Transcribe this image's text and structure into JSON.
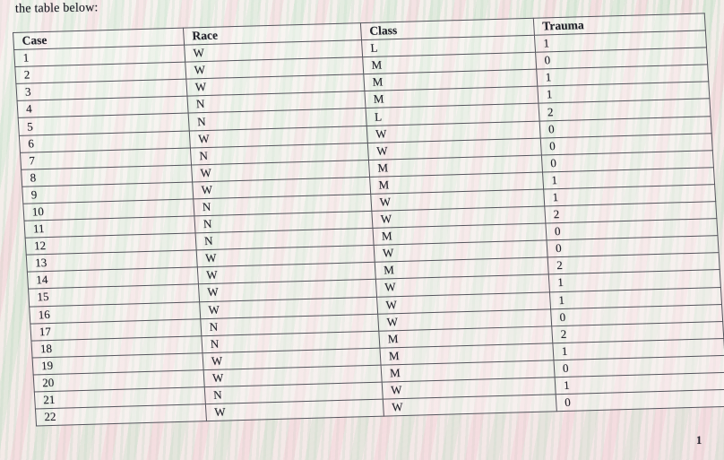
{
  "page": {
    "intro_text": "the table below:",
    "page_number": "1"
  },
  "table": {
    "columns": [
      "Case",
      "Race",
      "Class",
      "Trauma"
    ],
    "column_keys": [
      "case",
      "race",
      "class",
      "trauma"
    ],
    "rows": [
      [
        "1",
        "W",
        "L",
        "1"
      ],
      [
        "2",
        "W",
        "M",
        "0"
      ],
      [
        "3",
        "W",
        "M",
        "1"
      ],
      [
        "4",
        "N",
        "M",
        "1"
      ],
      [
        "5",
        "N",
        "L",
        "2"
      ],
      [
        "6",
        "W",
        "W",
        "0"
      ],
      [
        "7",
        "N",
        "W",
        "0"
      ],
      [
        "8",
        "W",
        "M",
        "0"
      ],
      [
        "9",
        "W",
        "M",
        "1"
      ],
      [
        "10",
        "N",
        "W",
        "1"
      ],
      [
        "11",
        "N",
        "W",
        "2"
      ],
      [
        "12",
        "N",
        "M",
        "0"
      ],
      [
        "13",
        "W",
        "W",
        "0"
      ],
      [
        "14",
        "W",
        "M",
        "2"
      ],
      [
        "15",
        "W",
        "W",
        "1"
      ],
      [
        "16",
        "W",
        "W",
        "1"
      ],
      [
        "17",
        "N",
        "W",
        "0"
      ],
      [
        "18",
        "N",
        "M",
        "2"
      ],
      [
        "19",
        "W",
        "M",
        "1"
      ],
      [
        "20",
        "W",
        "M",
        "0"
      ],
      [
        "21",
        "N",
        "W",
        "1"
      ],
      [
        "22",
        "W",
        "W",
        "0"
      ]
    ]
  },
  "colors": {
    "line": "#56565e",
    "text": "#23232b",
    "stripe_green": "#c7e4cc",
    "stripe_pink": "#f6c9d4"
  }
}
